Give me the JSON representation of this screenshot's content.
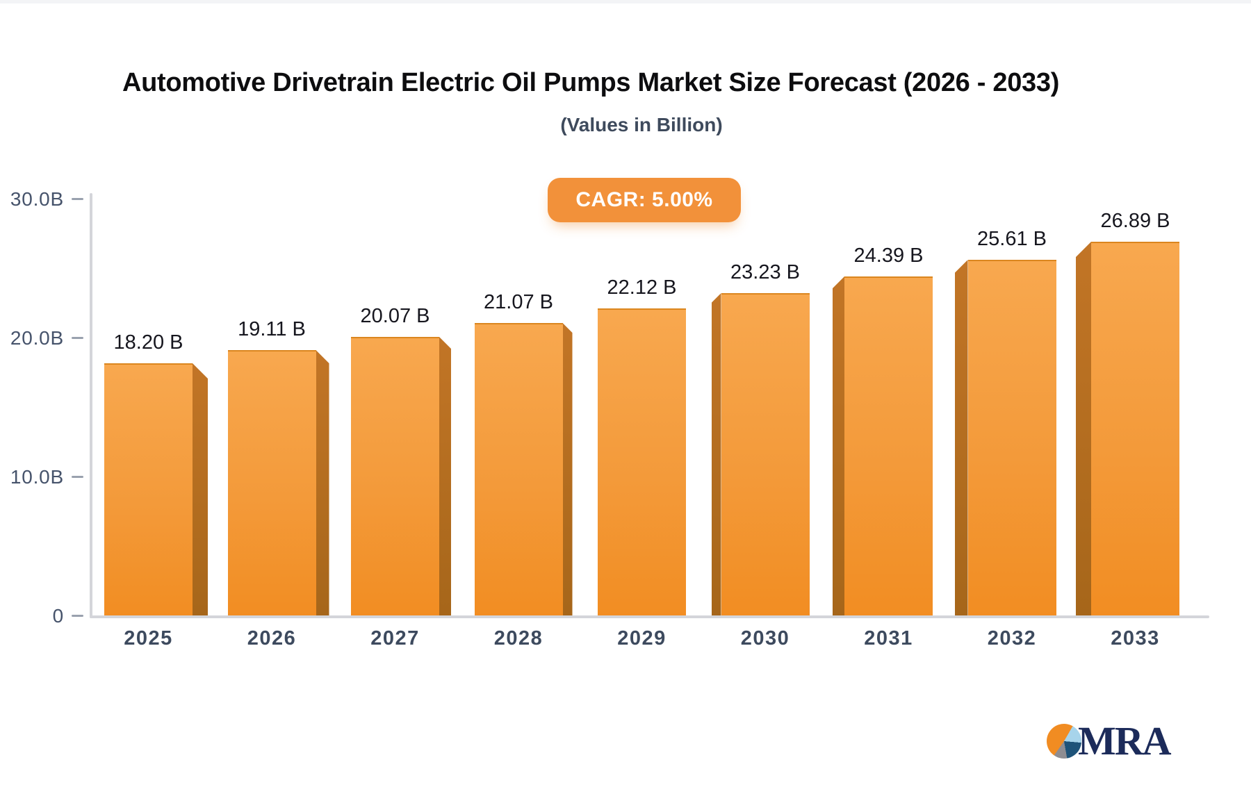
{
  "header": {
    "title": "Automotive Drivetrain Electric Oil Pumps Market Size Forecast (2026 - 2033)",
    "subtitle": "(Values in Billion)",
    "cagr_badge": "CAGR: 5.00%"
  },
  "chart_data": {
    "type": "bar",
    "title": "Automotive Drivetrain Electric Oil Pumps Market Size Forecast (2026 - 2033)",
    "subtitle": "(Values in Billion)",
    "cagr_percent": "5.00%",
    "categories": [
      "2025",
      "2026",
      "2027",
      "2028",
      "2029",
      "2030",
      "2031",
      "2032",
      "2033"
    ],
    "values": [
      18.2,
      19.11,
      20.07,
      21.07,
      22.12,
      23.23,
      24.39,
      25.61,
      26.89
    ],
    "value_labels": [
      "18.20 B",
      "19.11 B",
      "20.07 B",
      "21.07 B",
      "22.12 B",
      "23.23 B",
      "24.39 B",
      "25.61 B",
      "26.89 B"
    ],
    "unit": "Billion",
    "y_axis": {
      "ticks": [
        "30.0B",
        "20.0B",
        "10.0B",
        "0"
      ],
      "tick_values": [
        30,
        20,
        10,
        0
      ],
      "ylim": [
        0,
        30
      ]
    },
    "grid": false,
    "legend": false,
    "bar_style": "3d-perspective-orange"
  },
  "colors": {
    "accent": "#f2913a",
    "bar_top": "#f8a84f",
    "bar_mid": "#f39a3a",
    "bar_bottom": "#f28d22",
    "bar_edge": "#db861f",
    "bar_side_top": "#c27526",
    "bar_side_bottom": "#a6661a",
    "axis": "#d4d5da",
    "tick": "#99a1ae",
    "y_label": "#46536b",
    "x_label": "#3d4a5e",
    "value_label": "#16161e",
    "title": "#0d0d0f",
    "subtitle": "#3e4a5c",
    "badge_text": "#ffffff",
    "logo_navy": "#1c2b5a",
    "logo_orange": "#f18c22",
    "logo_light_blue": "#a7d4eb",
    "logo_dark_blue": "#1e5379",
    "logo_gray": "#8e8d92"
  },
  "logo": {
    "text": "MRA"
  }
}
